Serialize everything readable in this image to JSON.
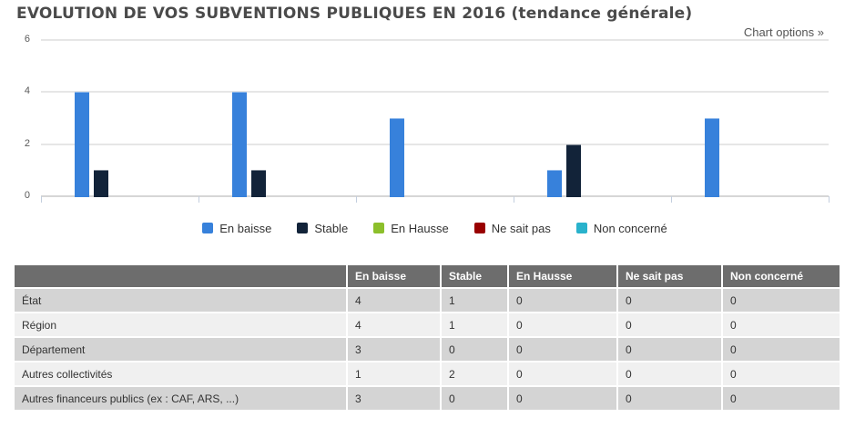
{
  "page": {
    "title": "EVOLUTION DE VOS SUBVENTIONS PUBLIQUES EN 2016 (tendance générale)",
    "chart_options_label": "Chart options »"
  },
  "chart_data": {
    "type": "bar",
    "title": "EVOLUTION DE VOS SUBVENTIONS PUBLIQUES EN 2016 (tendance générale)",
    "categories": [
      "État",
      "Région",
      "Département",
      "Autres collectivités",
      "Autres financeurs publics (ex : CAF, ARS, ...)"
    ],
    "series": [
      {
        "name": "En baisse",
        "color": "#3781db",
        "values": [
          4,
          4,
          3,
          1,
          3
        ]
      },
      {
        "name": "Stable",
        "color": "#122339",
        "values": [
          1,
          1,
          0,
          2,
          0
        ]
      },
      {
        "name": "En Hausse",
        "color": "#8cbf2b",
        "values": [
          0,
          0,
          0,
          0,
          0
        ]
      },
      {
        "name": "Ne sait pas",
        "color": "#990000",
        "values": [
          0,
          0,
          0,
          0,
          0
        ]
      },
      {
        "name": "Non concerné",
        "color": "#29b2cc",
        "values": [
          0,
          0,
          0,
          0,
          0
        ]
      }
    ],
    "xlabel": "",
    "ylabel": "",
    "ylim": [
      0,
      6
    ],
    "yticks": [
      0,
      2,
      4,
      6
    ],
    "grid": true,
    "legend_position": "bottom"
  },
  "table": {
    "headers": [
      "",
      "En baisse",
      "Stable",
      "En Hausse",
      "Ne sait pas",
      "Non concerné"
    ],
    "rows": [
      {
        "label": "État",
        "values": [
          4,
          1,
          0,
          0,
          0
        ]
      },
      {
        "label": "Région",
        "values": [
          4,
          1,
          0,
          0,
          0
        ]
      },
      {
        "label": "Département",
        "values": [
          3,
          0,
          0,
          0,
          0
        ]
      },
      {
        "label": "Autres collectivités",
        "values": [
          1,
          2,
          0,
          0,
          0
        ]
      },
      {
        "label": "Autres financeurs publics (ex : CAF, ARS, ...)",
        "values": [
          3,
          0,
          0,
          0,
          0
        ]
      }
    ]
  },
  "colors": {
    "title_text": "#4a4a4a",
    "table_header_bg": "#6d6d6d",
    "table_row_dark": "#d4d4d4",
    "table_row_light": "#f0f0f0",
    "gridline": "#e6e6e6",
    "axis_tick": "#c3cede"
  }
}
